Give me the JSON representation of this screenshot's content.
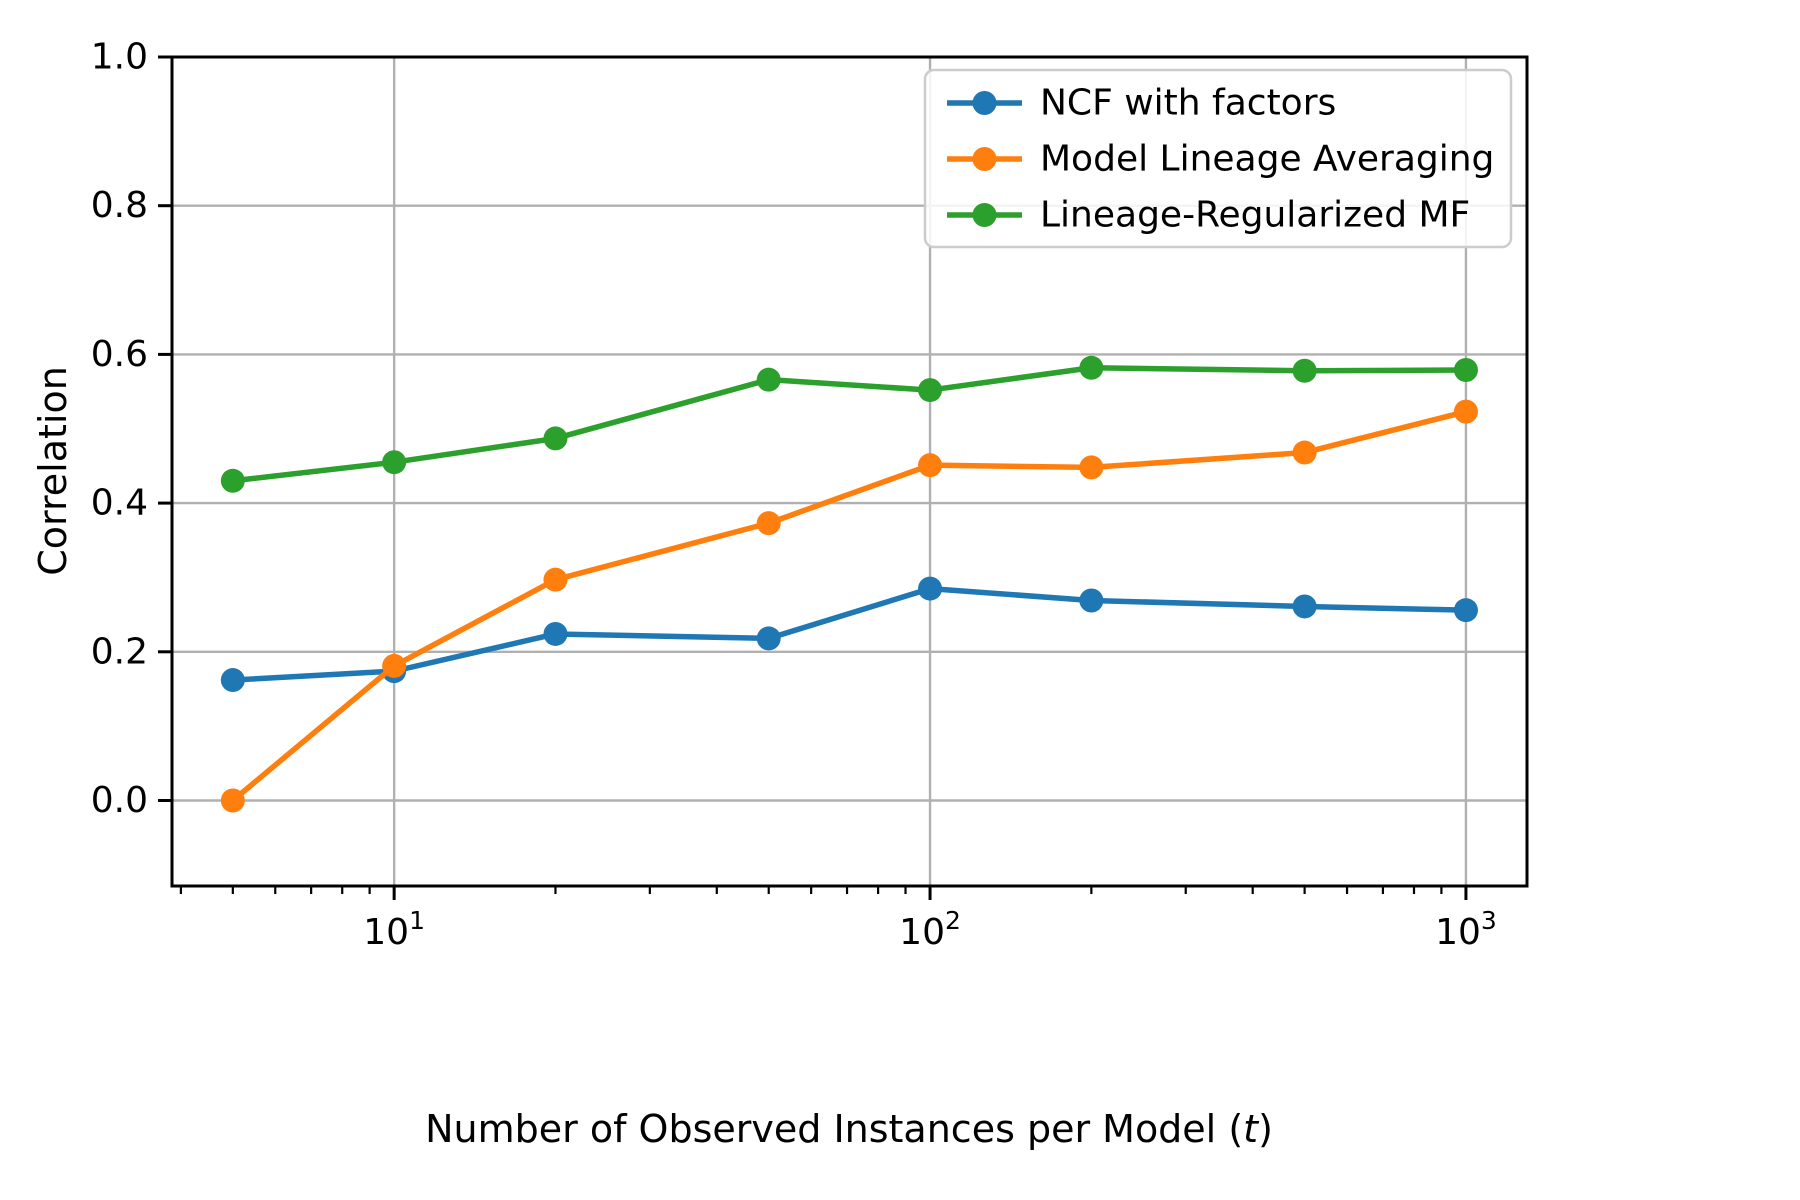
{
  "chart_data": {
    "type": "line",
    "title": "",
    "xlabel_prefix": "Number of Observed Instances per Model (",
    "xlabel_var": "t",
    "xlabel_suffix": ")",
    "ylabel": "Correlation",
    "xscale": "log",
    "grid": true,
    "legend_position": "upper right",
    "x": [
      5,
      10,
      20,
      50,
      100,
      200,
      500,
      1000
    ],
    "xlim": [
      3.85,
      1300
    ],
    "ylim": [
      -0.115,
      1.0
    ],
    "yticks": [
      0.0,
      0.2,
      0.4,
      0.6,
      0.8,
      1.0
    ],
    "xticks": [
      {
        "value": 10,
        "base": "10",
        "exp": "1"
      },
      {
        "value": 100,
        "base": "10",
        "exp": "2"
      },
      {
        "value": 1000,
        "base": "10",
        "exp": "3"
      }
    ],
    "series": [
      {
        "name": "NCF with factors",
        "color": "#1f77b4",
        "values": [
          0.162,
          0.174,
          0.224,
          0.218,
          0.285,
          0.269,
          0.261,
          0.256
        ]
      },
      {
        "name": "Model Lineage Averaging",
        "color": "#ff7f0e",
        "values": [
          0.0,
          0.181,
          0.297,
          0.373,
          0.451,
          0.448,
          0.468,
          0.523
        ]
      },
      {
        "name": "Lineage-Regularized MF",
        "color": "#2ca02c",
        "values": [
          0.43,
          0.455,
          0.487,
          0.566,
          0.552,
          0.582,
          0.578,
          0.579
        ]
      }
    ]
  }
}
